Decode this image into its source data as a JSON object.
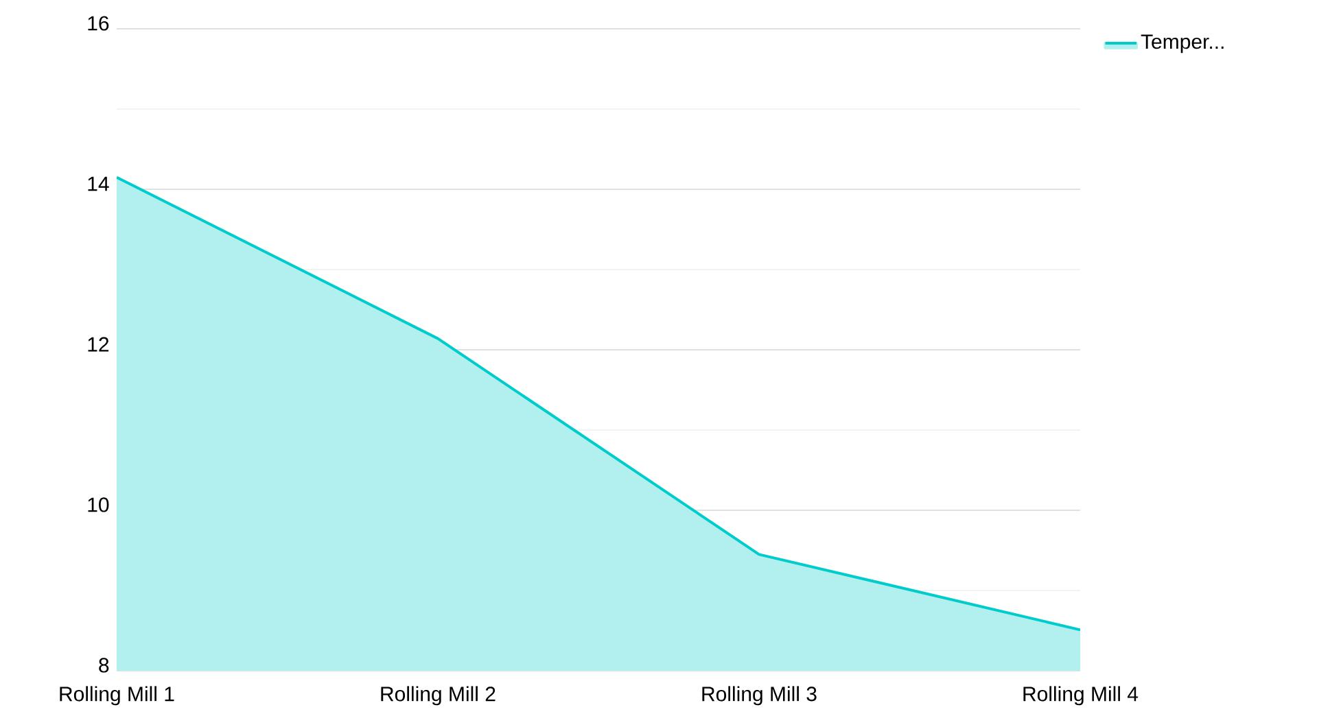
{
  "chart_data": {
    "type": "area",
    "categories": [
      "Rolling Mill 1",
      "Rolling Mill 2",
      "Rolling Mill 3",
      "Rolling Mill 4"
    ],
    "series": [
      {
        "name": "Temper...",
        "color": "#00cccc",
        "values": [
          14.15,
          12.14,
          9.45,
          8.51
        ]
      }
    ],
    "ylim": [
      8,
      16
    ],
    "yticks": [
      8,
      {
        "value": 9,
        "label": null
      },
      10,
      {
        "value": 11,
        "label": null
      },
      12,
      {
        "value": 13,
        "label": null
      },
      14,
      {
        "value": 15,
        "label": null
      },
      16
    ],
    "grid": "y",
    "legend": "top right"
  }
}
